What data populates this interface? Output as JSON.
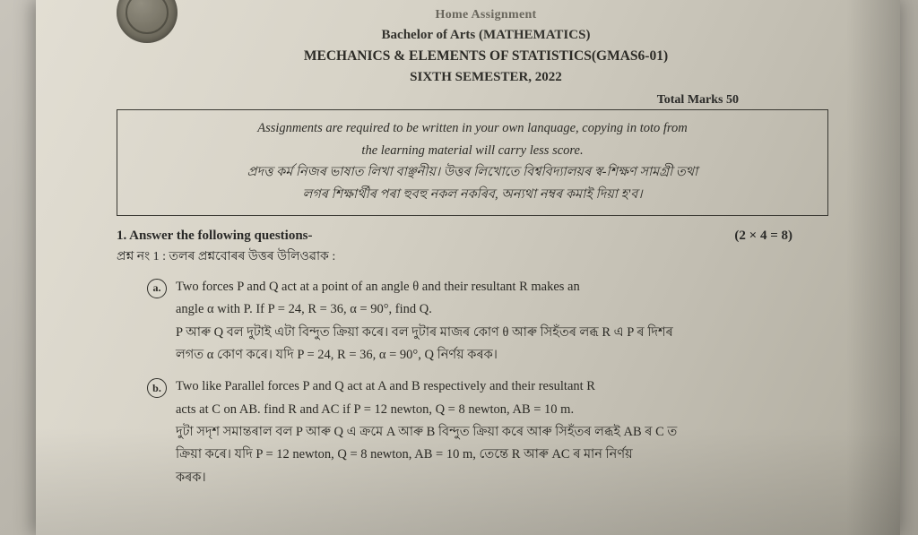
{
  "header": {
    "assignment": "Home Assignment",
    "degree": "Bachelor of Arts (MATHEMATICS)",
    "course": "MECHANICS & ELEMENTS OF STATISTICS(GMAS6-01)",
    "semester": "SIXTH SEMESTER, 2022",
    "total_marks": "Total Marks 50"
  },
  "notice": {
    "line1_en": "Assignments are required to be written in your own lanquage, copying in toto from",
    "line2_en": "the learning material will carry less score.",
    "line3_vn": "প্ৰদত্ত কৰ্ম নিজৰ ভাষাত লিখা বাঞ্ছনীয়। উত্তৰ লিখোতে বিশ্ববিদ্যালয়ৰ স্ব-শিক্ষণ সামগ্ৰী তথা",
    "line4_vn": "লগৰ শিক্ষাৰ্থীৰ পৰা হুবহু নকল নকৰিব, অন্যথা নম্বৰ কমাই দিয়া হ'ব।"
  },
  "q1": {
    "title": "1. Answer the following questions-",
    "marks": "(2 × 4 = 8)",
    "subtitle_vn": "প্ৰশ্ন নং 1 :  তলৰ প্ৰশ্নবোৰৰ উত্তৰ উলিওৱাক :"
  },
  "items": {
    "a": {
      "label": "a.",
      "en1": "Two forces P and Q act at a point of an angle θ and their resultant R makes an",
      "en2": "angle α with P. If P = 24, R = 36, α = 90°, find Q.",
      "vn1": "P আৰু Q বল দুটাই এটা বিন্দুত ক্ৰিয়া কৰে। বল দুটাৰ মাজৰ কোণ θ আৰু সিহঁতৰ লব্ধ R এ P ৰ দিশৰ",
      "vn2": "লগত α কোণ কৰে। যদি P = 24, R = 36, α = 90°, Q নিৰ্ণয় কৰক।"
    },
    "b": {
      "label": "b.",
      "en1": "Two like Parallel forces P and Q act at A and B respectively and their resultant R",
      "en2": "acts at C on AB. find R and AC if P = 12 newton, Q = 8 newton, AB = 10 m.",
      "vn1": "দুটা সদৃশ সমান্তৰাল বল P আৰু Q এ ক্ৰমে A আৰু B বিন্দুত ক্ৰিয়া কৰে আৰু সিহঁতৰ লব্ধই AB ৰ C ত",
      "vn2": "ক্ৰিয়া কৰে। যদি P = 12 newton, Q = 8 newton, AB = 10 m, তেন্তে R আৰু AC ৰ মান নিৰ্ণয়",
      "vn3": "কৰক।"
    }
  }
}
